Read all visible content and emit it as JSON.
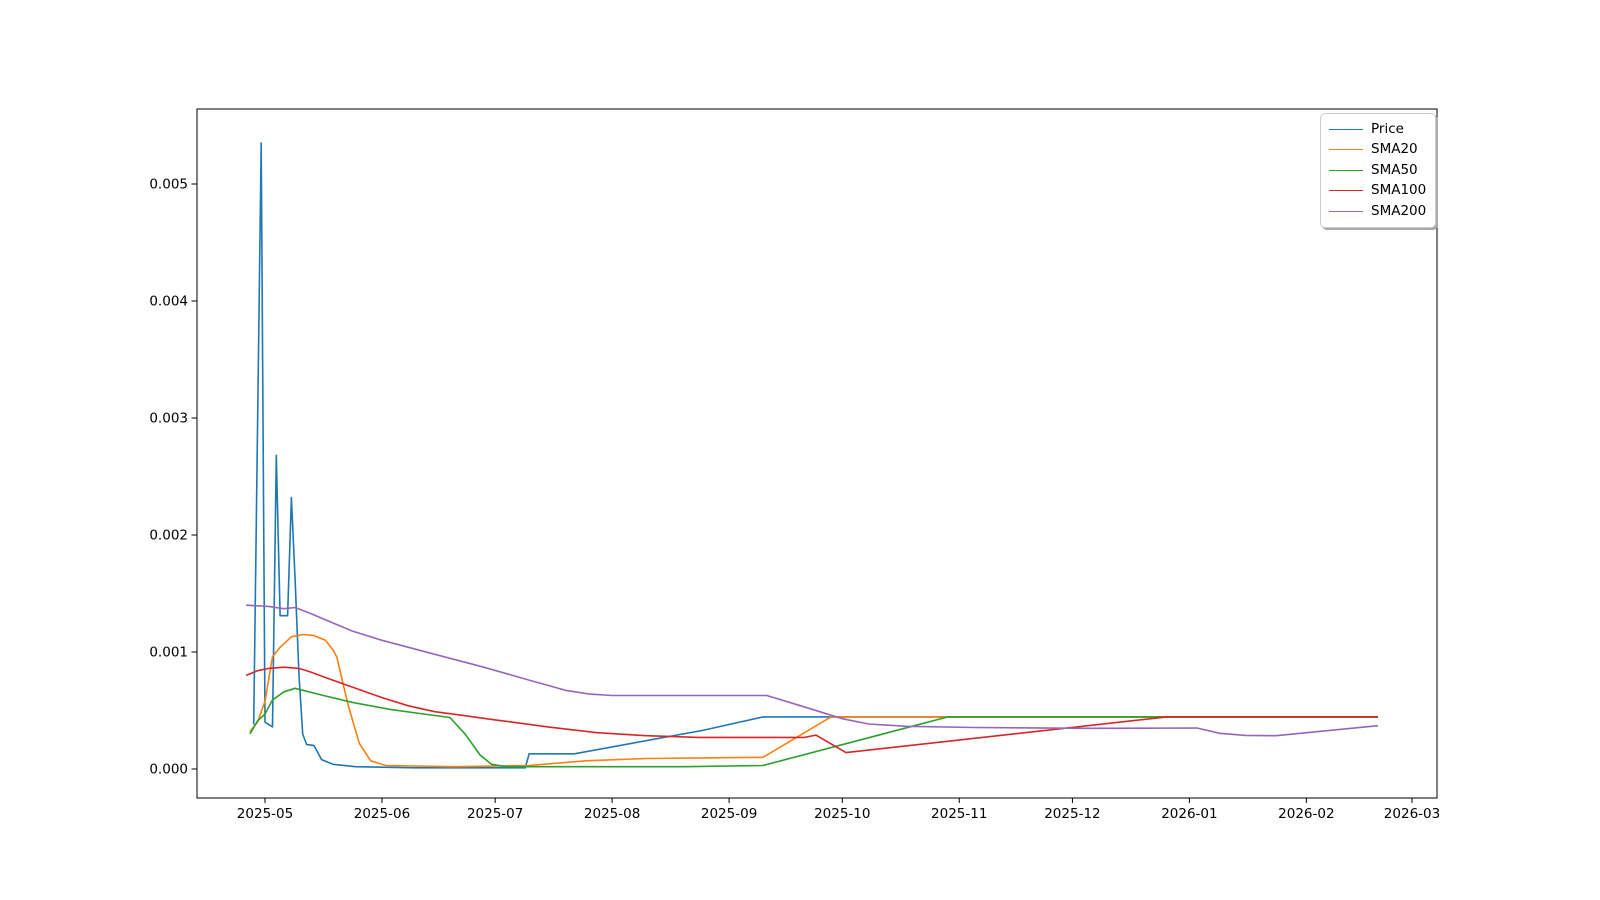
{
  "figure": {
    "background_color": "#ffffff",
    "axis_color": "#000000",
    "legend_border_color": "#cccccc"
  },
  "chart_data": {
    "type": "line",
    "title": "",
    "xlabel": "",
    "ylabel": "",
    "grid": false,
    "legend_position": "upper right",
    "x_axis": {
      "kind": "date",
      "tick_labels": [
        "2025-05",
        "2025-06",
        "2025-07",
        "2025-08",
        "2025-09",
        "2025-10",
        "2025-11",
        "2025-12",
        "2026-01",
        "2026-02",
        "2026-03"
      ],
      "data_range": [
        "2025-04-26",
        "2026-02-20"
      ]
    },
    "y_axis": {
      "tick_values": [
        0.0,
        0.001,
        0.002,
        0.003,
        0.004,
        0.005
      ],
      "tick_labels": [
        "0.000",
        "0.001",
        "0.002",
        "0.003",
        "0.004",
        "0.005"
      ],
      "approx_range": [
        -0.00025,
        0.00565
      ]
    },
    "series": [
      {
        "name": "Price",
        "color": "#1f77b4",
        "points": [
          [
            "2025-04-28",
            0.00038
          ],
          [
            "2025-04-30",
            0.00535
          ],
          [
            "2025-05-01",
            0.0004
          ],
          [
            "2025-05-03",
            0.00036
          ],
          [
            "2025-05-04",
            0.00268
          ],
          [
            "2025-05-05",
            0.00131
          ],
          [
            "2025-05-07",
            0.00131
          ],
          [
            "2025-05-08",
            0.00232
          ],
          [
            "2025-05-09",
            0.0016
          ],
          [
            "2025-05-10",
            0.0008
          ],
          [
            "2025-05-11",
            0.0003
          ],
          [
            "2025-05-12",
            0.00021
          ],
          [
            "2025-05-14",
            0.0002
          ],
          [
            "2025-05-16",
            8e-05
          ],
          [
            "2025-05-19",
            4e-05
          ],
          [
            "2025-05-25",
            2e-05
          ],
          [
            "2025-06-10",
            1e-05
          ],
          [
            "2025-07-09",
            1e-05
          ],
          [
            "2025-07-10",
            0.00013
          ],
          [
            "2025-07-22",
            0.00013
          ],
          [
            "2025-08-25",
            0.00033
          ],
          [
            "2025-09-10",
            0.000445
          ],
          [
            "2026-02-20",
            0.000445
          ]
        ]
      },
      {
        "name": "SMA20",
        "color": "#ff7f0e",
        "points": [
          [
            "2025-04-27",
            0.00032
          ],
          [
            "2025-04-29",
            0.0004
          ],
          [
            "2025-05-01",
            0.00058
          ],
          [
            "2025-05-03",
            0.00096
          ],
          [
            "2025-05-05",
            0.00104
          ],
          [
            "2025-05-08",
            0.00113
          ],
          [
            "2025-05-11",
            0.00115
          ],
          [
            "2025-05-14",
            0.00114
          ],
          [
            "2025-05-17",
            0.0011
          ],
          [
            "2025-05-19",
            0.00102
          ],
          [
            "2025-05-20",
            0.00096
          ],
          [
            "2025-05-23",
            0.00055
          ],
          [
            "2025-05-26",
            0.00022
          ],
          [
            "2025-05-29",
            7e-05
          ],
          [
            "2025-06-02",
            3e-05
          ],
          [
            "2025-06-20",
            2e-05
          ],
          [
            "2025-07-10",
            3e-05
          ],
          [
            "2025-07-25",
            7e-05
          ],
          [
            "2025-08-10",
            9e-05
          ],
          [
            "2025-09-10",
            0.0001
          ],
          [
            "2025-09-28",
            0.000445
          ],
          [
            "2026-02-20",
            0.000445
          ]
        ]
      },
      {
        "name": "SMA50",
        "color": "#2ca02c",
        "points": [
          [
            "2025-04-27",
            0.0003
          ],
          [
            "2025-04-29",
            0.00041
          ],
          [
            "2025-05-01",
            0.00047
          ],
          [
            "2025-05-03",
            0.00059
          ],
          [
            "2025-05-06",
            0.00066
          ],
          [
            "2025-05-09",
            0.00069
          ],
          [
            "2025-05-15",
            0.00064
          ],
          [
            "2025-05-24",
            0.00057
          ],
          [
            "2025-06-03",
            0.00051
          ],
          [
            "2025-06-12",
            0.00047
          ],
          [
            "2025-06-19",
            0.00044
          ],
          [
            "2025-06-23",
            0.0003
          ],
          [
            "2025-06-27",
            0.00012
          ],
          [
            "2025-06-30",
            4e-05
          ],
          [
            "2025-07-04",
            2e-05
          ],
          [
            "2025-08-20",
            2e-05
          ],
          [
            "2025-09-10",
            3e-05
          ],
          [
            "2025-10-29",
            0.000445
          ],
          [
            "2026-02-20",
            0.000445
          ]
        ]
      },
      {
        "name": "SMA100",
        "color": "#d62728",
        "points": [
          [
            "2025-04-26",
            0.0008
          ],
          [
            "2025-04-29",
            0.00084
          ],
          [
            "2025-05-02",
            0.00086
          ],
          [
            "2025-05-06",
            0.00087
          ],
          [
            "2025-05-10",
            0.00086
          ],
          [
            "2025-05-13",
            0.00083
          ],
          [
            "2025-05-18",
            0.00077
          ],
          [
            "2025-05-25",
            0.00069
          ],
          [
            "2025-06-01",
            0.00061
          ],
          [
            "2025-06-08",
            0.00054
          ],
          [
            "2025-06-15",
            0.00049
          ],
          [
            "2025-06-22",
            0.00046
          ],
          [
            "2025-07-01",
            0.00042
          ],
          [
            "2025-07-15",
            0.00036
          ],
          [
            "2025-07-28",
            0.00031
          ],
          [
            "2025-08-10",
            0.000285
          ],
          [
            "2025-08-24",
            0.00027
          ],
          [
            "2025-09-21",
            0.00027
          ],
          [
            "2025-09-24",
            0.00029
          ],
          [
            "2025-10-02",
            0.00014
          ],
          [
            "2025-12-26",
            0.000445
          ],
          [
            "2026-02-20",
            0.000445
          ]
        ]
      },
      {
        "name": "SMA200",
        "color": "#9467bd",
        "points": [
          [
            "2025-04-26",
            0.0014
          ],
          [
            "2025-05-02",
            0.00139
          ],
          [
            "2025-05-06",
            0.00137
          ],
          [
            "2025-05-09",
            0.00138
          ],
          [
            "2025-05-13",
            0.00133
          ],
          [
            "2025-05-24",
            0.00118
          ],
          [
            "2025-06-01",
            0.0011
          ],
          [
            "2025-06-15",
            0.00098
          ],
          [
            "2025-06-28",
            0.00087
          ],
          [
            "2025-07-10",
            0.00076
          ],
          [
            "2025-07-20",
            0.00067
          ],
          [
            "2025-07-26",
            0.00064
          ],
          [
            "2025-08-01",
            0.000628
          ],
          [
            "2025-09-11",
            0.000628
          ],
          [
            "2025-09-20",
            0.00054
          ],
          [
            "2025-10-01",
            0.00043
          ],
          [
            "2025-10-08",
            0.000385
          ],
          [
            "2025-10-18",
            0.000365
          ],
          [
            "2025-11-05",
            0.000355
          ],
          [
            "2025-12-05",
            0.000348
          ],
          [
            "2026-01-03",
            0.00035
          ],
          [
            "2026-01-09",
            0.000305
          ],
          [
            "2026-01-16",
            0.000287
          ],
          [
            "2026-01-24",
            0.000285
          ],
          [
            "2026-02-20",
            0.00037
          ]
        ]
      }
    ]
  }
}
